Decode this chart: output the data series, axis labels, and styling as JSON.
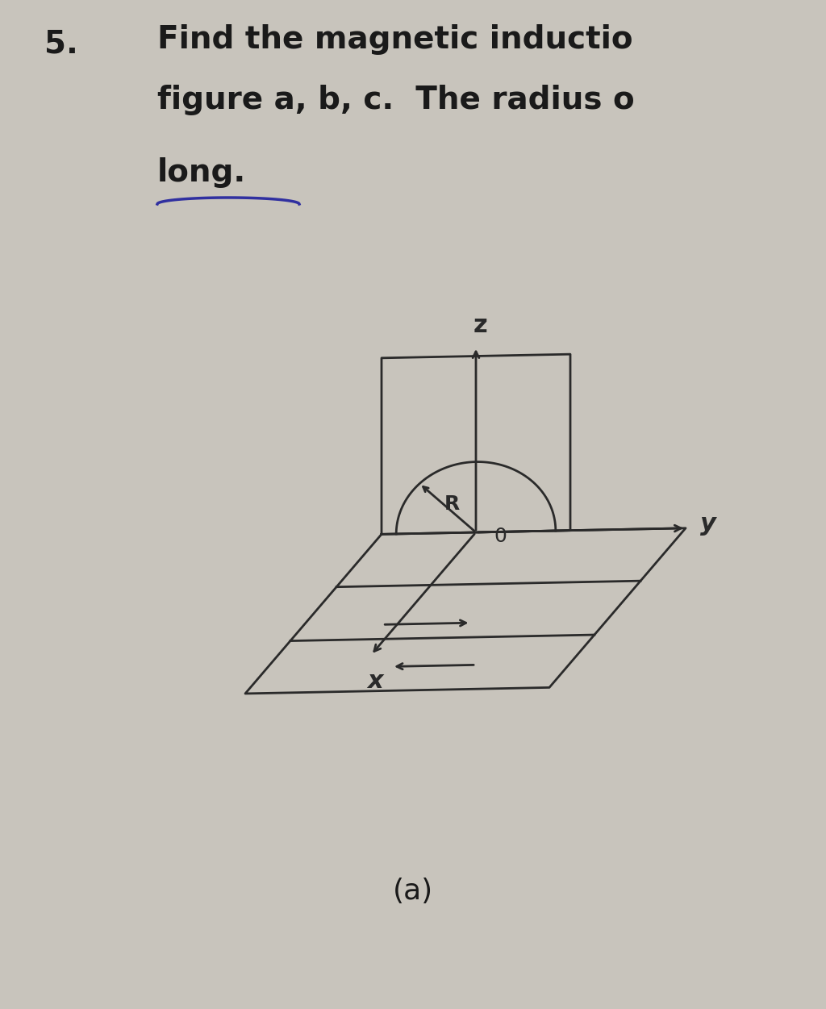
{
  "bg_color": "#c8c4bc",
  "text_color": "#1a1a1a",
  "line_color": "#2a2a2a",
  "title_number": "5.",
  "title_text": "Find the magnetic inductio",
  "title_line2": "figure a, b, c.  The radius o",
  "title_line3": "long.",
  "caption": "(a)",
  "axis_label_z": "z",
  "axis_label_y": "y",
  "axis_label_x": "x",
  "axis_label_R": "R",
  "axis_label_O": "0",
  "font_size_title": 28,
  "font_size_caption": 26,
  "font_size_axis": 22
}
